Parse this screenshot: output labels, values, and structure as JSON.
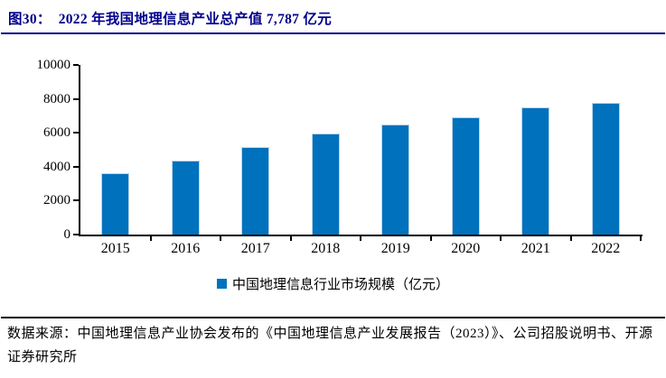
{
  "header": {
    "figure_label": "图30：",
    "title": "2022 年我国地理信息产业总产值 7,787 亿元"
  },
  "chart_data": {
    "type": "bar",
    "categories": [
      "2015",
      "2016",
      "2017",
      "2018",
      "2019",
      "2020",
      "2021",
      "2022"
    ],
    "values": [
      3600,
      4360,
      5180,
      5957,
      6476,
      6890,
      7524,
      7787
    ],
    "series_name": "中国地理信息行业市场规模（亿元）",
    "title": "",
    "xlabel": "",
    "ylabel": "",
    "ylim": [
      0,
      10000
    ],
    "yticks": [
      0,
      2000,
      4000,
      6000,
      8000,
      10000
    ],
    "grid": false,
    "legend_position": "bottom",
    "bar_color": "#0071BC"
  },
  "legend": {
    "label": "中国地理信息行业市场规模（亿元）",
    "swatch_color": "#0071BC"
  },
  "footer": {
    "source_text": "数据来源：中国地理信息产业协会发布的《中国地理信息产业发展报告（2023）》、公司招股说明书、开源证券研究所"
  },
  "colors": {
    "title_navy": "#00008B",
    "bar_blue": "#0071BC",
    "axis_black": "#000000"
  }
}
